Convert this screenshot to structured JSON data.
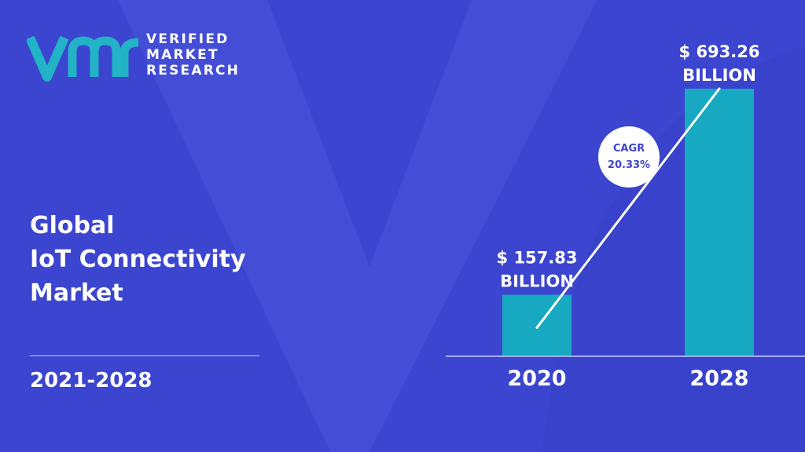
{
  "brand": {
    "line1": "VERIFIED",
    "line2": "MARKET",
    "line3": "RESEARCH",
    "mark": "vmr-logo-icon"
  },
  "title": {
    "line1": "Global",
    "line2": "IoT Connectivity",
    "line3": "Market"
  },
  "period": "2021-2028",
  "colors": {
    "background": "#3c45cf",
    "bar": "#16a9c1",
    "logo": "#22b3c6"
  },
  "chart_data": {
    "type": "bar",
    "categories": [
      "2020",
      "2028"
    ],
    "values": [
      157.83,
      693.26
    ],
    "value_labels": [
      [
        "$ 157.83",
        "BILLION"
      ],
      [
        "$ 693.26",
        "BILLION"
      ]
    ],
    "cagr": {
      "label": "CAGR",
      "value": "20.33%"
    },
    "title": "",
    "xlabel": "",
    "ylabel": "",
    "grid": false,
    "legend": "none"
  }
}
